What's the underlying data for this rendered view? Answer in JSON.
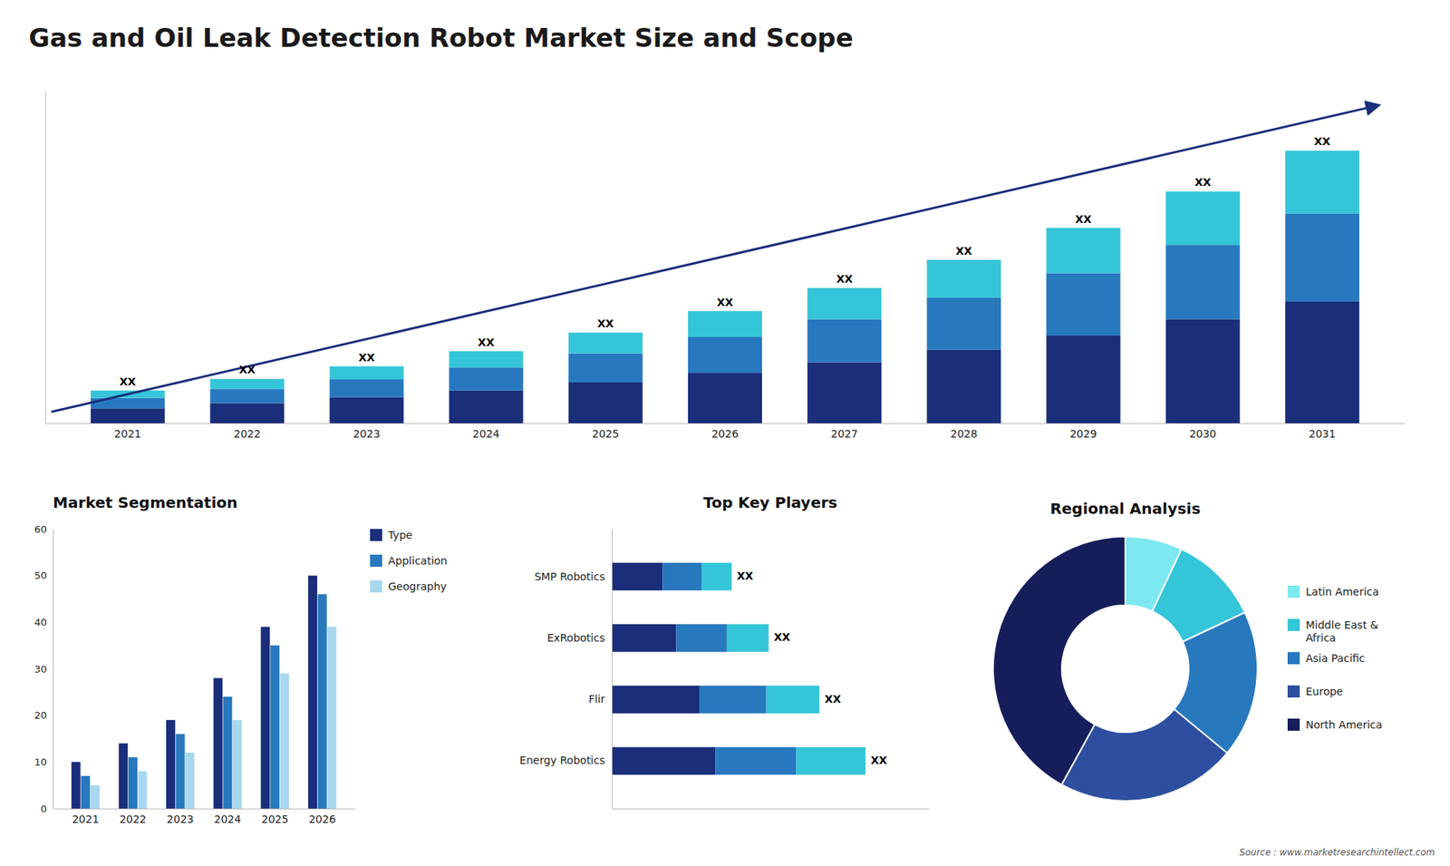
{
  "chart_data": [
    {
      "type": "bar",
      "title": "Gas and Oil Leak Detection Robot Market Size and Scope",
      "stacked": true,
      "categories": [
        "2021",
        "2022",
        "2023",
        "2024",
        "2025",
        "2026",
        "2027",
        "2028",
        "2029",
        "2030",
        "2031"
      ],
      "series": [
        {
          "color": "#1a2e7a",
          "values": [
            1.0,
            1.35,
            1.75,
            2.2,
            2.75,
            3.4,
            4.1,
            4.95,
            5.9,
            7.0,
            8.2
          ]
        },
        {
          "color": "#2878be",
          "values": [
            0.7,
            0.95,
            1.2,
            1.55,
            1.95,
            2.4,
            2.9,
            3.5,
            4.2,
            5.0,
            5.9
          ]
        },
        {
          "color": "#35c5d8",
          "values": [
            0.5,
            0.68,
            0.88,
            1.1,
            1.4,
            1.75,
            2.1,
            2.55,
            3.05,
            3.6,
            4.25
          ],
          "value_labels": [
            "XX",
            "XX",
            "XX",
            "XX",
            "XX",
            "XX",
            "XX",
            "XX",
            "XX",
            "XX",
            "XX"
          ]
        }
      ],
      "ylim": [
        0,
        22.387
      ],
      "data_labels": true,
      "tick_labels": "x",
      "grid": false
    },
    {
      "type": "bar",
      "title": "Market Segmentation",
      "categories": [
        "2021",
        "2022",
        "2023",
        "2024",
        "2025",
        "2026"
      ],
      "series": [
        {
          "name": "Type",
          "color": "#1a2e7a",
          "values": [
            10,
            14,
            19,
            28,
            39,
            50
          ]
        },
        {
          "name": "Application",
          "color": "#2878be",
          "values": [
            7,
            11,
            16,
            24,
            35,
            46
          ]
        },
        {
          "name": "Geography",
          "color": "#a8d8f0",
          "values": [
            5,
            8,
            12,
            19,
            29,
            39
          ]
        }
      ],
      "ylim": [
        0,
        60
      ],
      "yticks": [
        0,
        10,
        20,
        30,
        40,
        50,
        60
      ],
      "legend": "right",
      "grid": false
    },
    {
      "type": "bar",
      "title": "Top Key Players",
      "orientation": "horizontal",
      "stacked": true,
      "categories": [
        "Energy Robotics",
        "Flir",
        "ExRobotics",
        "SMP Robotics"
      ],
      "series": [
        {
          "color": "#1a2e7a",
          "values": [
            4.5,
            3.8,
            2.8,
            2.2
          ]
        },
        {
          "color": "#2878be",
          "values": [
            3.5,
            2.9,
            2.2,
            1.7
          ]
        },
        {
          "color": "#35c5d8",
          "values": [
            3.0,
            2.3,
            1.8,
            1.3
          ],
          "value_labels": [
            "XX",
            "XX",
            "XX",
            "XX"
          ]
        }
      ],
      "xlim": [
        0,
        13.75
      ],
      "data_labels": true,
      "tick_labels": "y",
      "grid": false
    },
    {
      "type": "donut",
      "title": "Regional Analysis",
      "categories": [
        "Latin America",
        "Middle East &\nAfrica",
        "Asia Pacific",
        "Europe",
        "North America"
      ],
      "values": [
        7,
        11,
        18,
        22,
        42
      ],
      "colors": [
        "#7de8f0",
        "#35c5d8",
        "#2878be",
        "#2e4fa0",
        "#151e5a"
      ],
      "legend": "right",
      "annotations": [
        "Source : www.marketresearchintellect.com"
      ]
    }
  ]
}
